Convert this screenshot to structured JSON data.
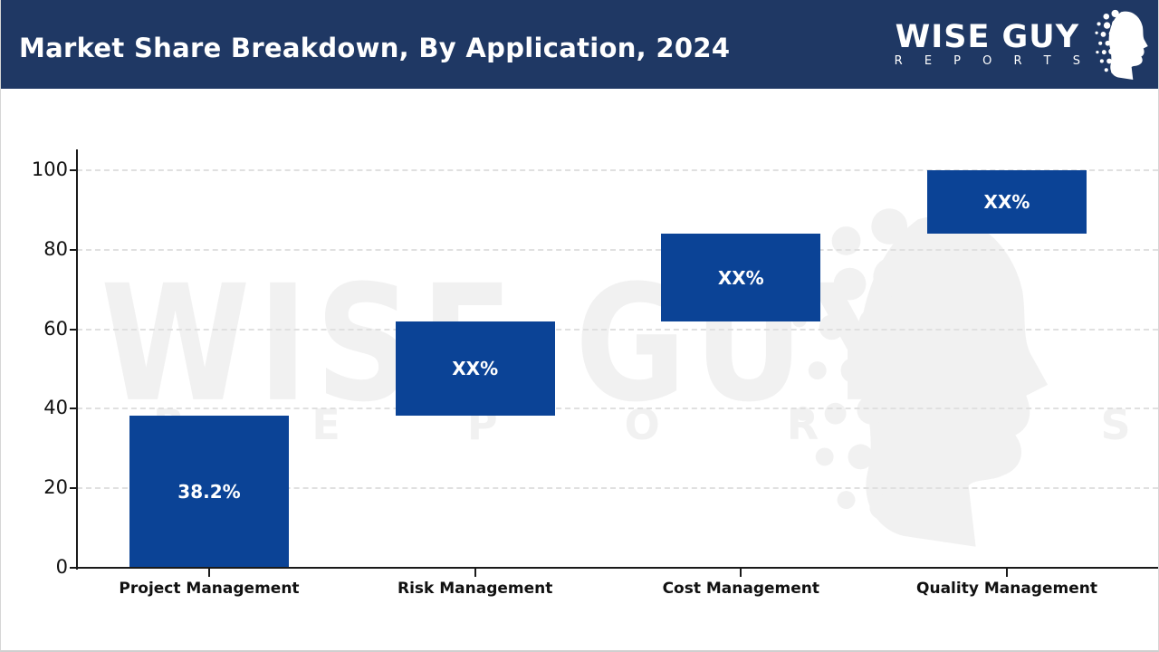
{
  "header": {
    "title": "Market Share Breakdown, By Application, 2024",
    "logo": {
      "line1": "WISE GUY",
      "line2": "R E P O R T S"
    },
    "colors": {
      "header_bg": "#1f3864",
      "header_text": "#ffffff"
    }
  },
  "watermark": {
    "line1": "WISE GUY",
    "line2": "R E P O R T S"
  },
  "chart_data": {
    "type": "bar",
    "subtype": "waterfall",
    "title": "Market Share Breakdown, By Application, 2024",
    "categories": [
      "Project Management",
      "Risk Management",
      "Cost Management",
      "Quality Management"
    ],
    "segments": [
      {
        "category": "Project Management",
        "start": 0,
        "end": 38.2,
        "label": "38.2%"
      },
      {
        "category": "Risk Management",
        "start": 38.2,
        "end": 62,
        "label": "XX%"
      },
      {
        "category": "Cost Management",
        "start": 62,
        "end": 84,
        "label": "XX%"
      },
      {
        "category": "Quality Management",
        "start": 84,
        "end": 100,
        "label": "XX%"
      }
    ],
    "xlabel": "",
    "ylabel": "",
    "ylim": [
      0,
      100
    ],
    "yticks": [
      0,
      20,
      40,
      60,
      80,
      100
    ],
    "grid": "horizontal-dashed",
    "legend": "none",
    "bar_color": "#0b4396",
    "bar_label_color": "#ffffff",
    "axis_color": "#1a1a1a",
    "gridline_color": "#e0e0e0"
  }
}
